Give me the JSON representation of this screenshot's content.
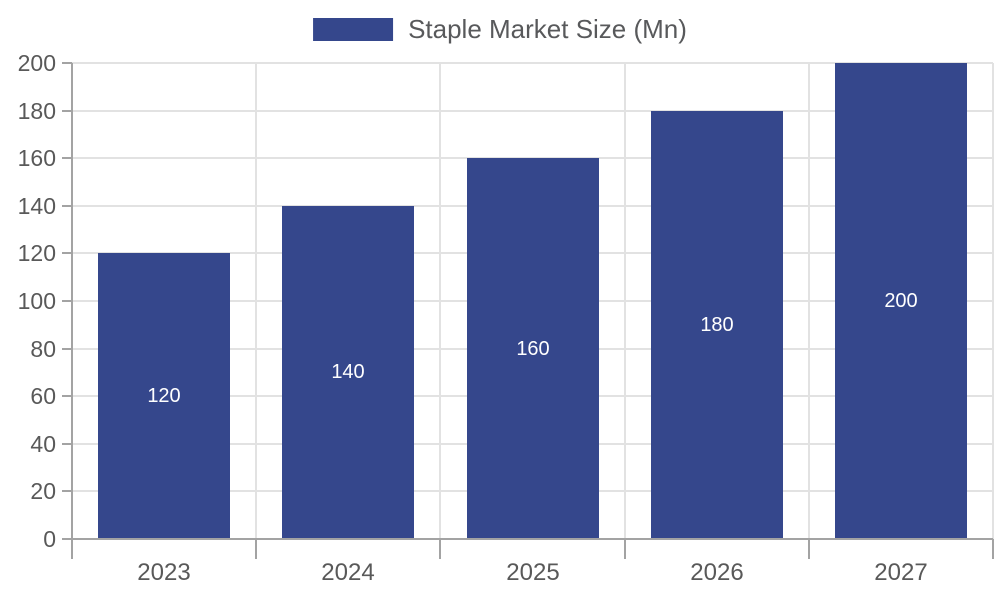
{
  "legend": {
    "label": "Staple Market Size (Mn)"
  },
  "chart_data": {
    "type": "bar",
    "title": "Staple Market Size (Mn)",
    "categories": [
      "2023",
      "2024",
      "2025",
      "2026",
      "2027"
    ],
    "values": [
      120,
      140,
      160,
      180,
      200
    ],
    "series_name": "Staple Market Size (Mn)",
    "xlabel": "",
    "ylabel": "",
    "ylim": [
      0,
      200
    ],
    "ytick_step": 20,
    "ytick_labels": [
      "0",
      "20",
      "40",
      "60",
      "80",
      "100",
      "120",
      "140",
      "160",
      "180",
      "200"
    ],
    "bar_value_labels": [
      "120",
      "140",
      "160",
      "180",
      "200"
    ],
    "grid": true,
    "legend_position": "top-center",
    "colors": {
      "bar": "#35478C",
      "grid": "#e2e2e2",
      "axis": "#a3a3a3",
      "tick_text": "#595959",
      "bar_label_text": "#ffffff",
      "legend_text": "#58595b",
      "background": "#ffffff"
    }
  }
}
